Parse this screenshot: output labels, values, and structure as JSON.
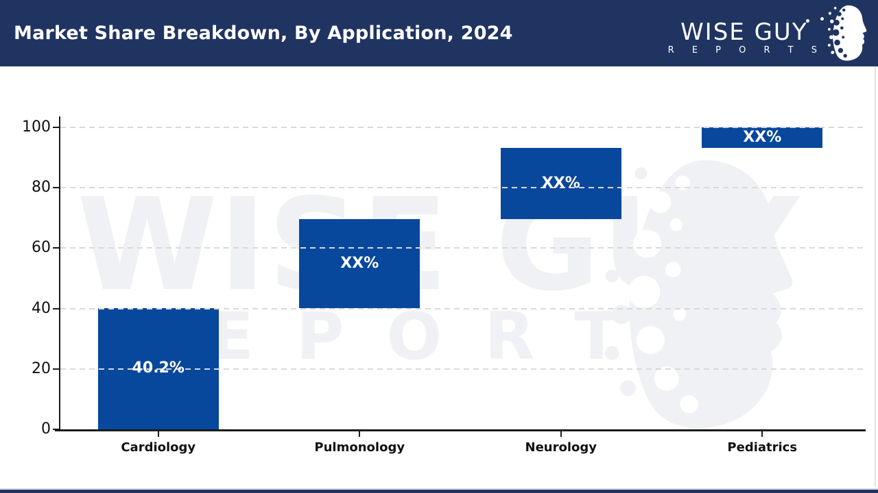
{
  "header": {
    "title": "Market Share Breakdown, By Application, 2024",
    "logo": {
      "line1": "WISE GUY",
      "line2": "R E P O R T S"
    }
  },
  "watermark": {
    "line1": "WISE GUY",
    "line2": "REPORTS"
  },
  "chart_data": {
    "type": "bar",
    "subtype": "waterfall-segments",
    "title": "Market Share Breakdown, By Application, 2024",
    "categories": [
      "Cardiology",
      "Pulmonology",
      "Neurology",
      "Pediatrics"
    ],
    "segments": [
      {
        "category": "Cardiology",
        "start": 0,
        "end": 40.2,
        "label": "40.2%"
      },
      {
        "category": "Pulmonology",
        "start": 40.2,
        "end": 69.7,
        "label": "XX%"
      },
      {
        "category": "Neurology",
        "start": 69.7,
        "end": 93.2,
        "label": "XX%"
      },
      {
        "category": "Pediatrics",
        "start": 93.2,
        "end": 100,
        "label": "XX%"
      }
    ],
    "yticks": [
      0,
      20,
      40,
      60,
      80,
      100
    ],
    "ylim": [
      0,
      103.6
    ],
    "xlabel": "",
    "ylabel": "",
    "grid": "horizontal-dashed",
    "legend": "none",
    "colors": {
      "bar": "#08489c",
      "bar_label": "#ffffff",
      "grid": "#d9d9d9",
      "axis": "#1a1a1a",
      "tick_label": "#111111"
    }
  },
  "colors": {
    "header_bg": "#203462",
    "page_bg": "#ffffff",
    "footer_bg": "#203462"
  }
}
